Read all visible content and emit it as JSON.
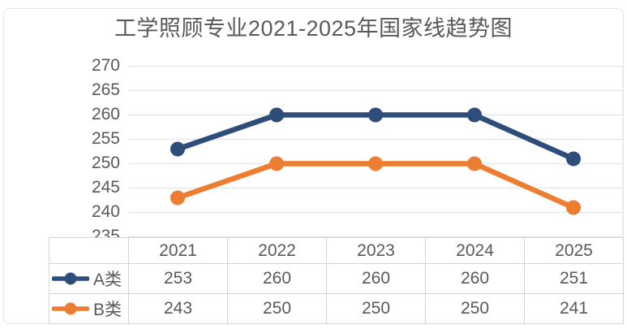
{
  "title": "工学照顾专业2021-2025年国家线趋势图",
  "chart_data": {
    "type": "line",
    "title": "工学照顾专业2021-2025年国家线趋势图",
    "categories": [
      "2021",
      "2022",
      "2023",
      "2024",
      "2025"
    ],
    "series": [
      {
        "name": "A类",
        "values": [
          253,
          260,
          260,
          260,
          251
        ],
        "color": "#2e4d7b",
        "marker": "circle"
      },
      {
        "name": "B类",
        "values": [
          243,
          250,
          250,
          250,
          241
        ],
        "color": "#ed7d31",
        "marker": "circle"
      }
    ],
    "ylim": [
      235,
      270
    ],
    "yticks": [
      270,
      265,
      260,
      255,
      250,
      245,
      240,
      235
    ],
    "ytick_step": 5,
    "grid": true,
    "gridline_color": "#e8e8e8",
    "text_color": "#595959",
    "legend_position": "table-left",
    "data_table_shown": true
  }
}
